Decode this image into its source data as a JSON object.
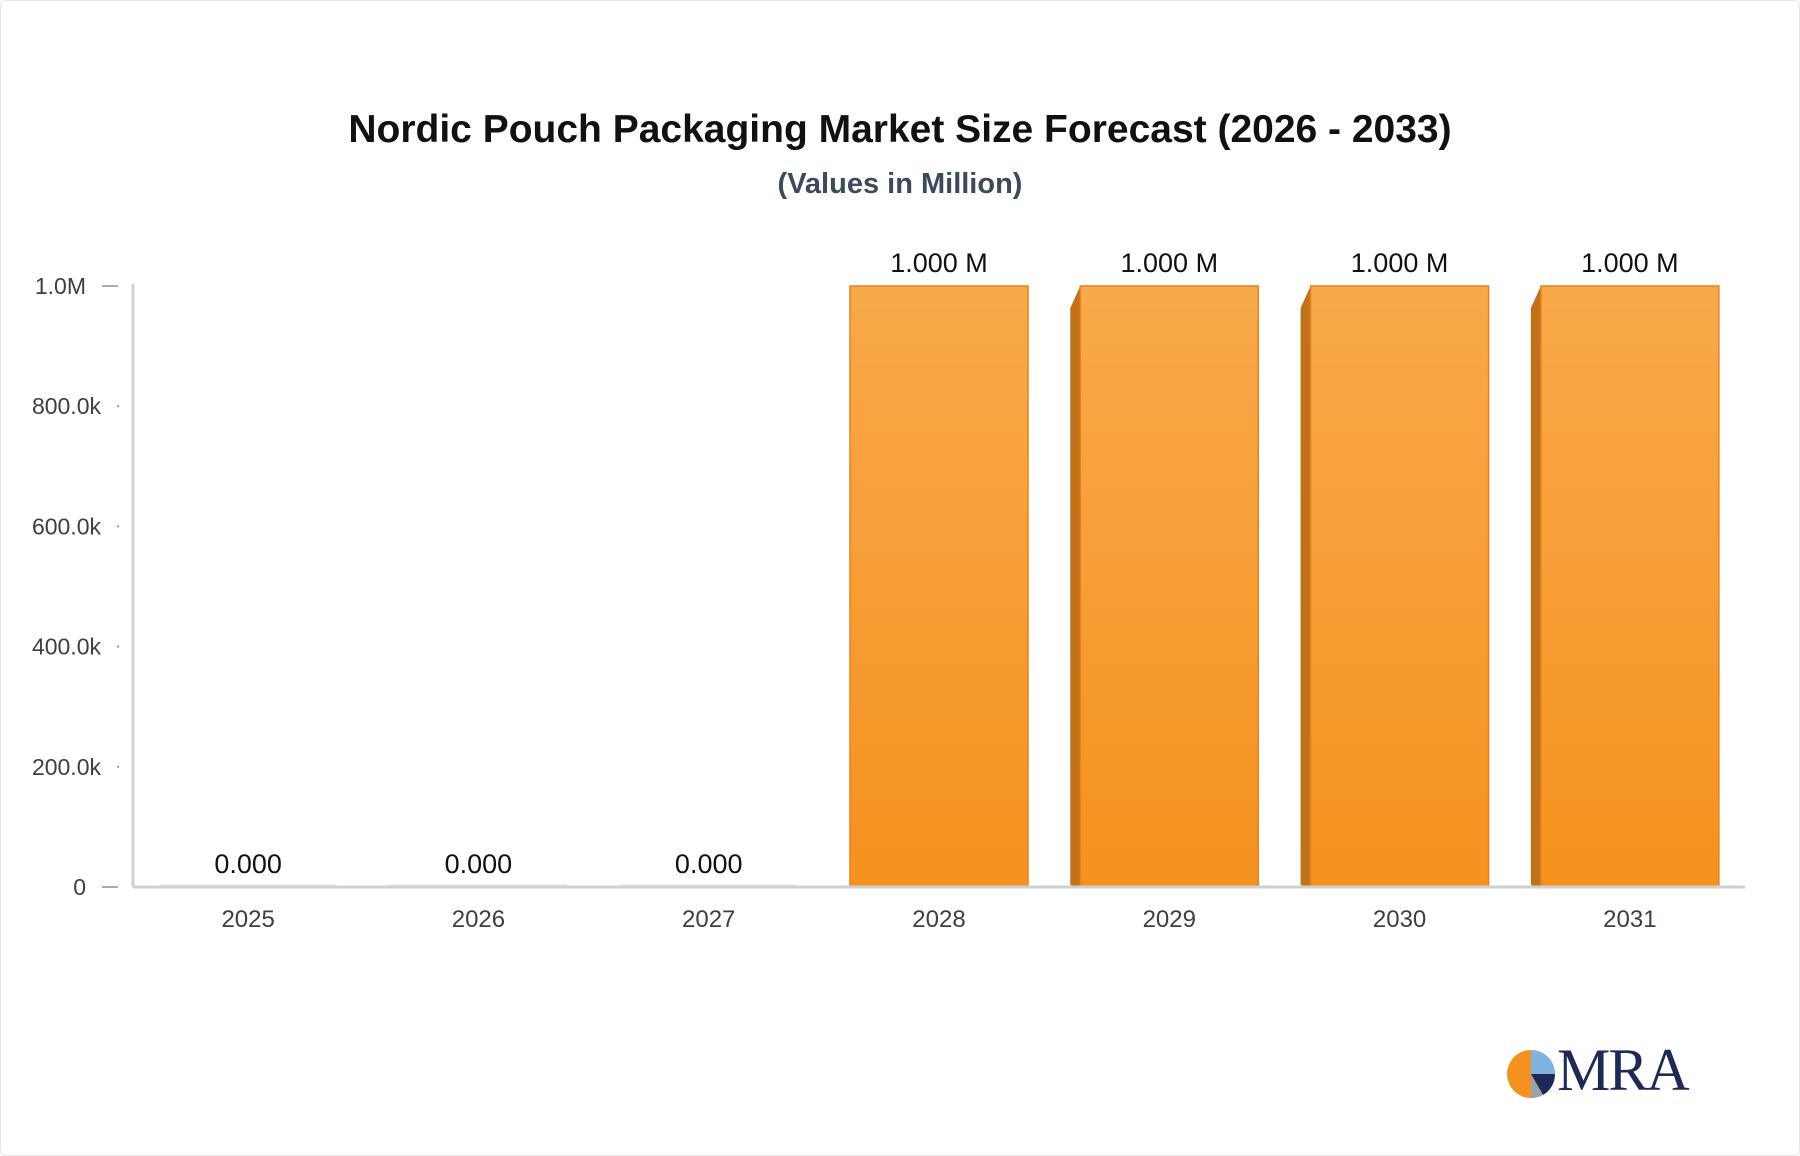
{
  "chart_data": {
    "type": "bar",
    "title": "Nordic Pouch Packaging Market Size Forecast (2026 - 2033)",
    "subtitle": "(Values in Million)",
    "categories": [
      "2025",
      "2026",
      "2027",
      "2028",
      "2029",
      "2030",
      "2031"
    ],
    "values": [
      0,
      0,
      0,
      1000000,
      1000000,
      1000000,
      1000000
    ],
    "data_labels": [
      "0.000",
      "0.000",
      "0.000",
      "1.000 M",
      "1.000 M",
      "1.000 M",
      "1.000 M"
    ],
    "y_ticks": [
      0,
      200000,
      400000,
      600000,
      800000,
      1000000
    ],
    "y_tick_labels": [
      "0",
      "200.0k",
      "400.0k",
      "600.0k",
      "800.0k",
      "1.0M"
    ],
    "ylim": [
      0,
      1000000
    ],
    "xlabel": "",
    "ylabel": "",
    "grid": false,
    "legend": "none",
    "colors": {
      "bar_top": "#f9a94b",
      "bar_bottom": "#f5921f",
      "bar_side": "#c0711a",
      "bar_edge": "#e5821a",
      "axis": "#d0d0d0",
      "tick_text": "#3a3f48",
      "label_text": "#111111"
    }
  },
  "logo": {
    "text": "MRA",
    "icon": "mra-pie-logo-icon"
  }
}
